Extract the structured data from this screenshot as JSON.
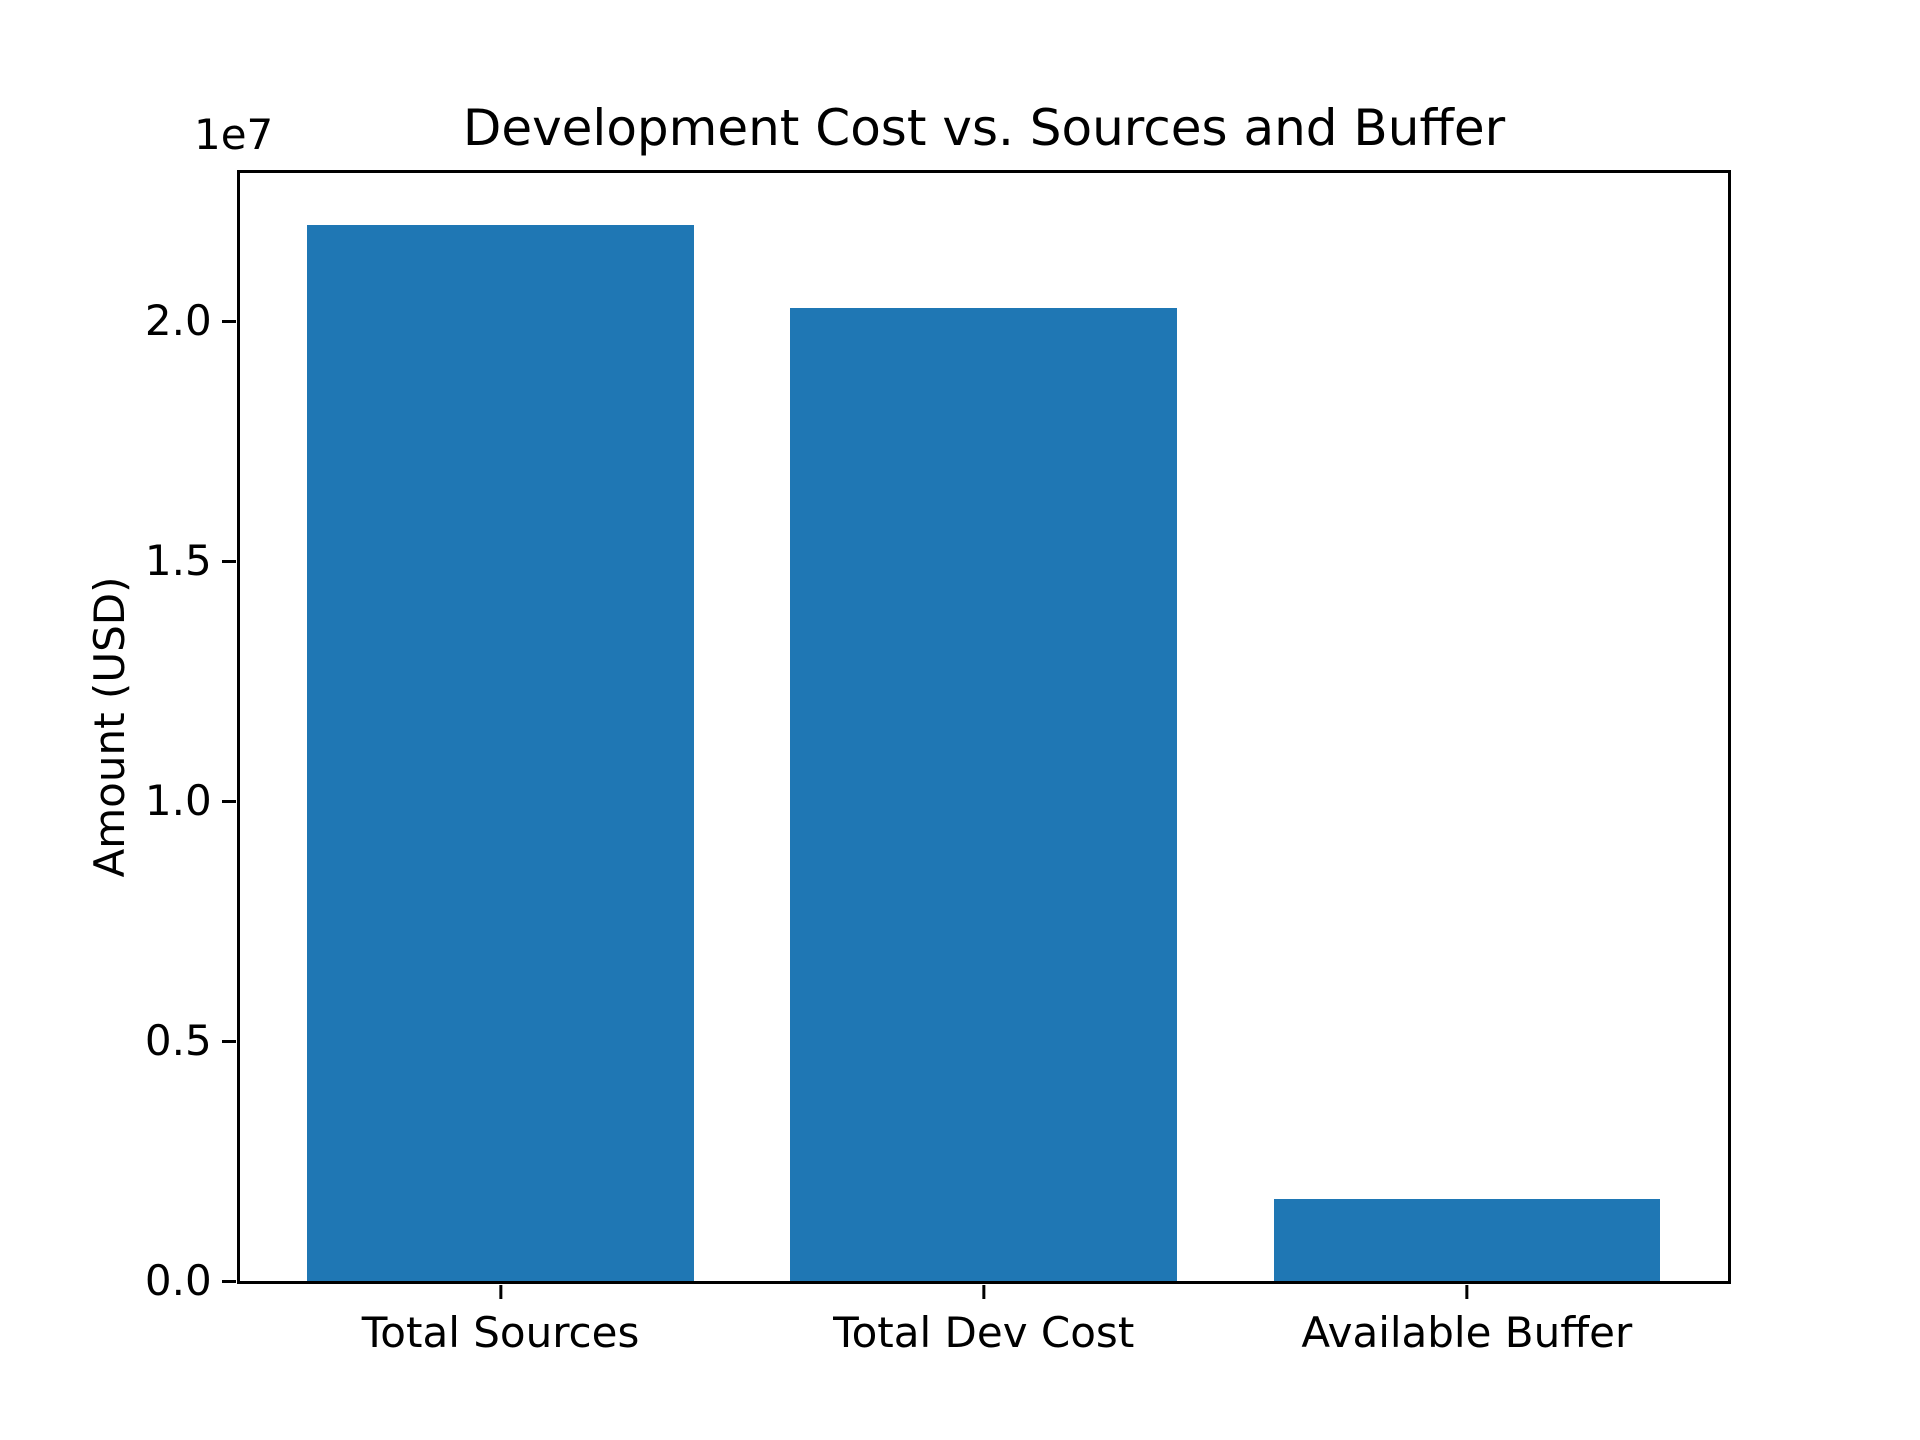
{
  "figure": {
    "background": "#ffffff",
    "text_color": "#000000"
  },
  "chart_data": {
    "type": "bar",
    "title": "Development Cost vs. Sources and Buffer",
    "xlabel": "",
    "ylabel": "Amount (USD)",
    "y_offset_text": "1e7",
    "categories": [
      "Total Sources",
      "Total Dev Cost",
      "Available Buffer"
    ],
    "values": [
      22000000,
      20280000,
      1720000
    ],
    "series": [
      {
        "name": "Amount (USD)",
        "values": [
          22000000,
          20280000,
          1720000
        ]
      }
    ],
    "bar_color": "#1f77b4",
    "bar_width_fraction": 0.8,
    "x_margin_fraction": 0.05,
    "ylim": [
      0,
      23100000
    ],
    "yticks": [
      0,
      5000000,
      10000000,
      15000000,
      20000000
    ],
    "ytick_labels": [
      "0.0",
      "0.5",
      "1.0",
      "1.5",
      "2.0"
    ],
    "grid": false,
    "legend": "none"
  }
}
